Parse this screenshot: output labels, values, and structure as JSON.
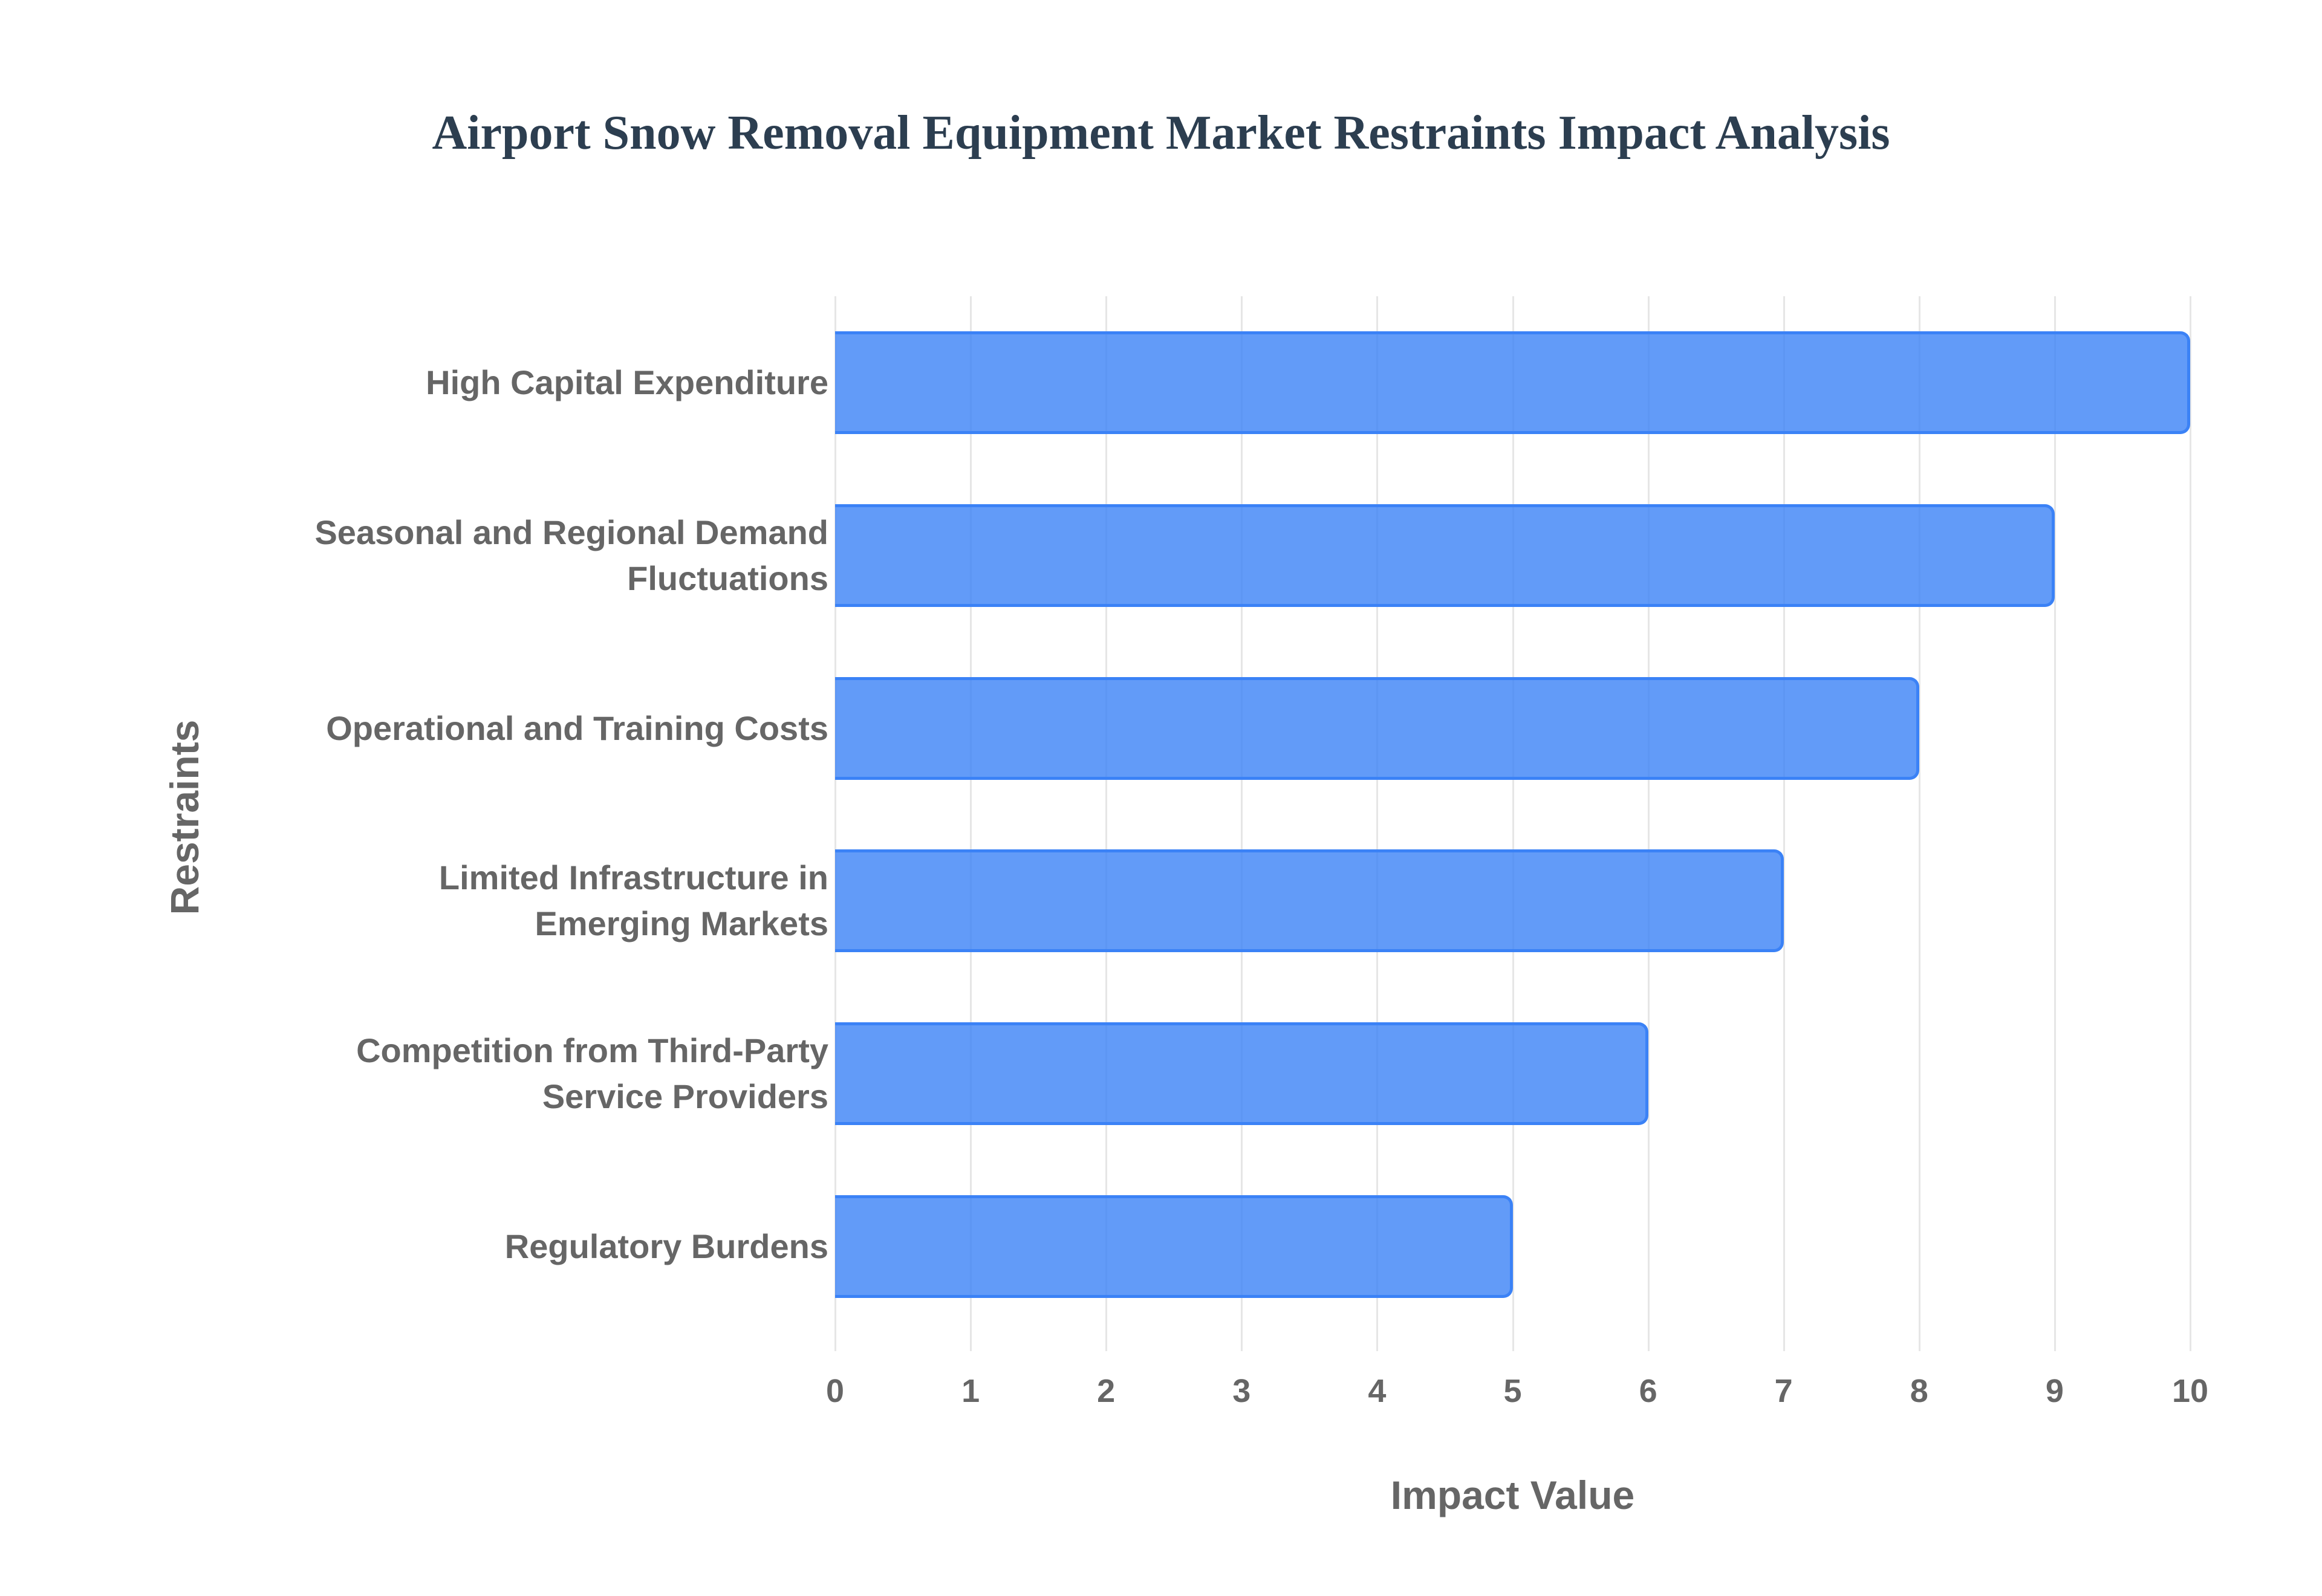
{
  "title": "Airport Snow Removal Equipment Market Restraints Impact Analysis",
  "colors": {
    "bar_fill": "#6199f5",
    "bar_border": "#3b82f6",
    "title": "#2c3e50",
    "axis_text": "#666666",
    "grid": "#e6e6e6"
  },
  "chart_data": {
    "type": "bar",
    "orientation": "horizontal",
    "title": "Airport Snow Removal Equipment Market Restraints Impact Analysis",
    "xlabel": "Impact Value",
    "ylabel": "Restraints",
    "xlim": [
      0,
      10
    ],
    "grid": true,
    "legend": "none",
    "categories": [
      "High Capital Expenditure",
      "Seasonal and Regional Demand Fluctuations",
      "Operational and Training Costs",
      "Limited Infrastructure in Emerging Markets",
      "Competition from Third-Party Service Providers",
      "Regulatory Burdens"
    ],
    "values": [
      10,
      9,
      8,
      7,
      6,
      5
    ],
    "x_ticks": [
      "0",
      "1",
      "2",
      "3",
      "4",
      "5",
      "6",
      "7",
      "8",
      "9",
      "10"
    ]
  },
  "labels": [
    {
      "lines": [
        "High Capital Expenditure"
      ]
    },
    {
      "lines": [
        "Seasonal and Regional Demand",
        "Fluctuations"
      ]
    },
    {
      "lines": [
        "Operational and Training Costs"
      ]
    },
    {
      "lines": [
        "Limited Infrastructure in",
        "Emerging Markets"
      ]
    },
    {
      "lines": [
        "Competition from Third-Party",
        "Service Providers"
      ]
    },
    {
      "lines": [
        "Regulatory Burdens"
      ]
    }
  ]
}
